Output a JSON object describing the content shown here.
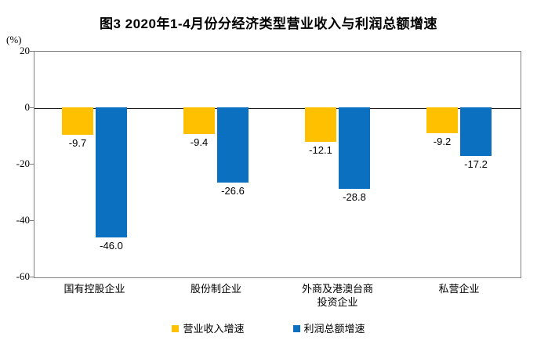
{
  "title": "图3 2020年1-4月份分经济类型营业收入与利润总额增速",
  "y_axis_unit": "(%)",
  "colors": {
    "revenue_series": "#FFC000",
    "profit_series": "#0C70C0",
    "plot_border": "#808080",
    "zero_axis": "#1a1a1a",
    "text": "#000000"
  },
  "chart_data": {
    "type": "bar",
    "title": "图3 2020年1-4月份分经济类型营业收入与利润总额增速",
    "categories": [
      "国有控股企业",
      "股份制企业",
      "外商及港澳台商\n投资企业",
      "私营企业"
    ],
    "series": [
      {
        "name": "营业收入增速",
        "color": "#FFC000",
        "values": [
          -9.7,
          -9.4,
          -12.1,
          -9.2
        ]
      },
      {
        "name": "利润总额增速",
        "color": "#0C70C0",
        "values": [
          -46.0,
          -26.6,
          -28.8,
          -17.2
        ]
      }
    ],
    "ylabel": "(%)",
    "xlabel": "",
    "ylim": [
      -60,
      20
    ],
    "yticks": [
      20,
      0,
      -20,
      -40,
      -60
    ],
    "grid": false,
    "value_labels": true,
    "value_label_decimals": 1,
    "legend_position": "bottom"
  }
}
